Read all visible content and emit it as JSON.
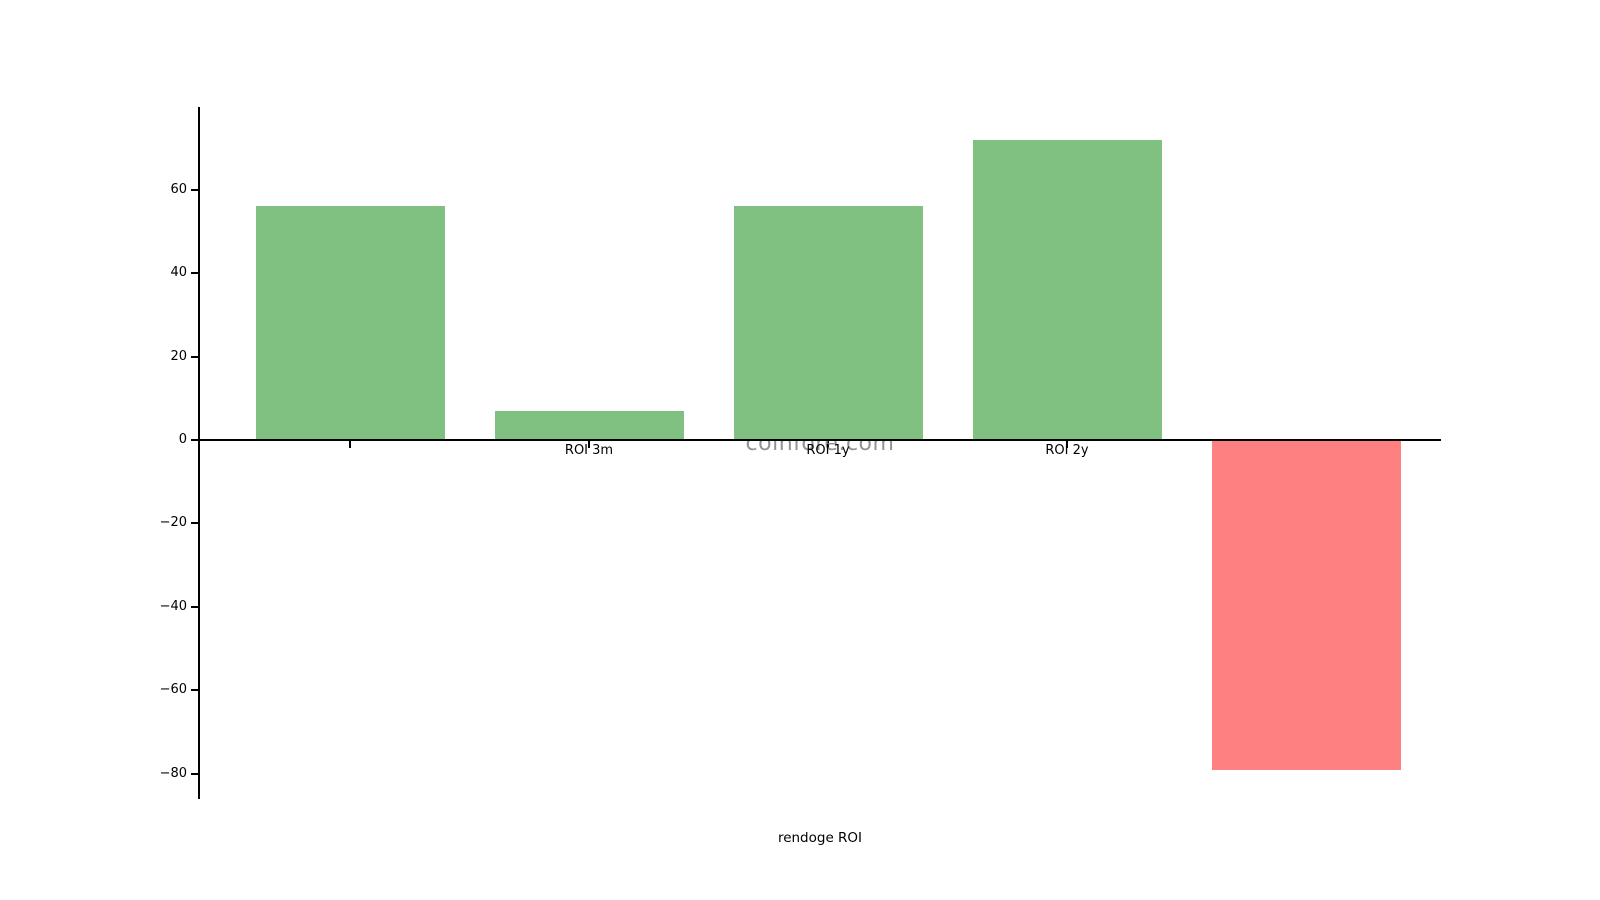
{
  "chart_data": {
    "type": "bar",
    "title": "rendoge ROI",
    "watermark": "coinfore.com",
    "categories": [
      "",
      "ROI 3m",
      "ROI 1y",
      "ROI 2y",
      ""
    ],
    "values": [
      56,
      7,
      56,
      72,
      -79
    ],
    "bar_colors": [
      "#80c080",
      "#80c080",
      "#80c080",
      "#80c080",
      "#ff8080"
    ],
    "positive_color": "#80c080",
    "negative_color": "#ff8080",
    "axis_color": "#000000",
    "watermark_color": "#808080",
    "xlabel": "",
    "ylabel": "",
    "ylim": [
      -86.6,
      79.6
    ],
    "grid": false,
    "legend": false,
    "yticks": [
      {
        "label": "60",
        "value": 60
      },
      {
        "label": "40",
        "value": 40
      },
      {
        "label": "20",
        "value": 20
      },
      {
        "label": "0",
        "value": 0
      },
      {
        "label": "−20",
        "value": -20
      },
      {
        "label": "−40",
        "value": -40
      },
      {
        "label": "−60",
        "value": -60
      },
      {
        "label": "−80",
        "value": -80
      }
    ]
  }
}
